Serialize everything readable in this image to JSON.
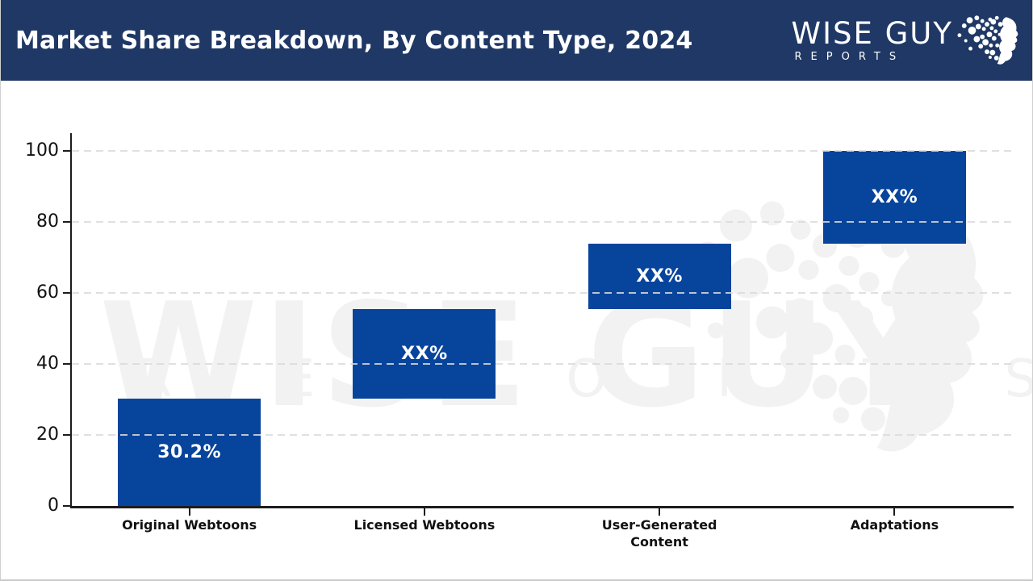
{
  "header": {
    "title": "Market Share Breakdown, By Content Type, 2024",
    "logo": {
      "line1": "WISE GUY",
      "line2": "REPORTS"
    }
  },
  "watermark": {
    "line1": "WISE GUY",
    "line2": "R E P O R T S"
  },
  "chart_data": {
    "type": "bar",
    "subtype": "floating-waterfall",
    "title": "Market Share Breakdown, By Content Type, 2024",
    "categories": [
      "Original Webtoons",
      "Licensed Webtoons",
      "User-Generated Content",
      "Adaptations"
    ],
    "categories_lines": [
      [
        "Original Webtoons"
      ],
      [
        "Licensed Webtoons"
      ],
      [
        "User-Generated",
        "Content"
      ],
      [
        "Adaptations"
      ]
    ],
    "segments": [
      {
        "category": "Original Webtoons",
        "start": 0,
        "end": 30.2,
        "label": "30.2%"
      },
      {
        "category": "Licensed Webtoons",
        "start": 30.2,
        "end": 55.5,
        "label": "XX%"
      },
      {
        "category": "User-Generated Content",
        "start": 55.5,
        "end": 73.7,
        "label": "XX%"
      },
      {
        "category": "Adaptations",
        "start": 73.7,
        "end": 100,
        "label": "XX%"
      }
    ],
    "ylim": [
      0,
      100
    ],
    "yticks": [
      0,
      20,
      40,
      60,
      80,
      100
    ],
    "grid": "horizontal-dashed",
    "legend": "none",
    "colors": {
      "bar": "#07449c",
      "header_bg": "#1f3865",
      "gridline": "#dadada",
      "watermark": "#f2f2f2"
    }
  }
}
